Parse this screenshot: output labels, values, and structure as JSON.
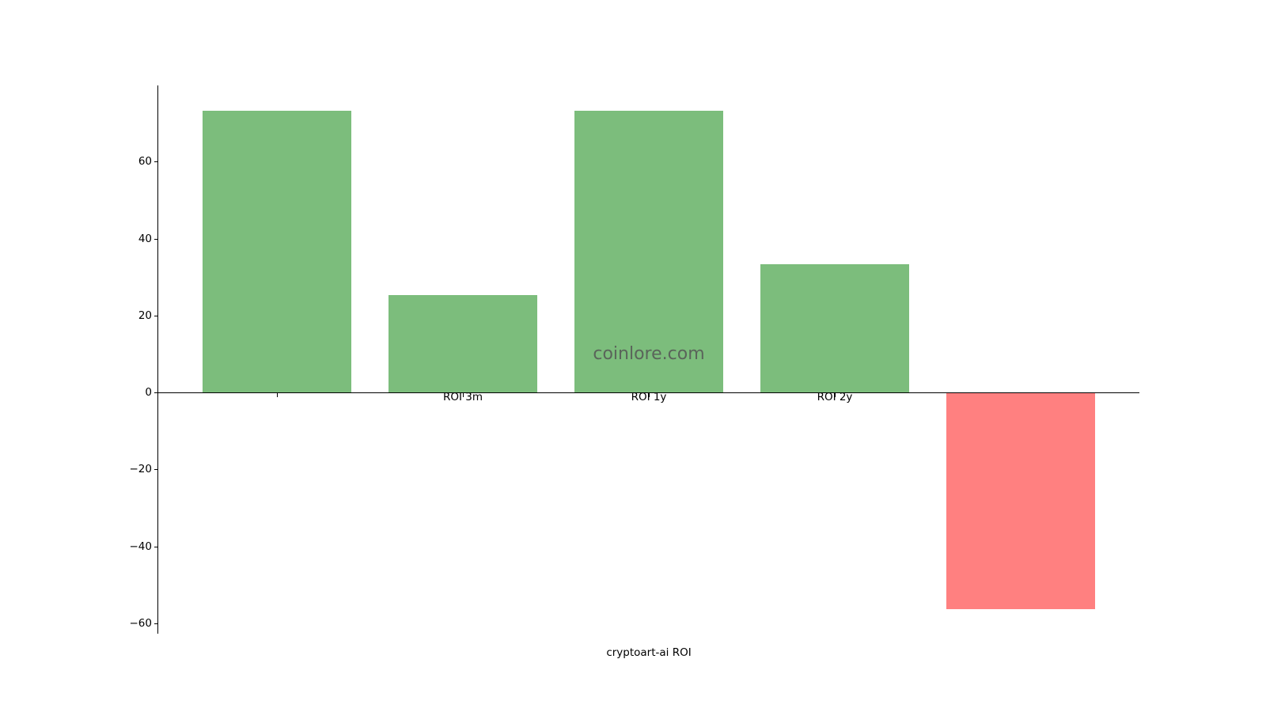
{
  "chart_data": {
    "type": "bar",
    "title": "",
    "xlabel": "cryptoart-ai ROI",
    "ylabel": "",
    "categories": [
      "",
      "ROI 3m",
      "ROI 1y",
      "ROI 2y",
      ""
    ],
    "values": [
      73.3,
      25.3,
      73.3,
      33.3,
      -56.2
    ],
    "positive_color": "#7cbd7c",
    "negative_color": "#ff8080",
    "yticks": {
      "values": [
        60,
        40,
        20,
        0,
        -20,
        -40,
        -60
      ],
      "labels": [
        "60",
        "40",
        "20",
        "0",
        "−20",
        "−40",
        "−60"
      ]
    },
    "ylim": [
      -62.7,
      79.8
    ],
    "xlim": [
      -0.64,
      4.64
    ],
    "grid": false,
    "legend": "none",
    "axis_color": "#000000",
    "watermark": "coinlore.com",
    "watermark_color": "#555555"
  }
}
